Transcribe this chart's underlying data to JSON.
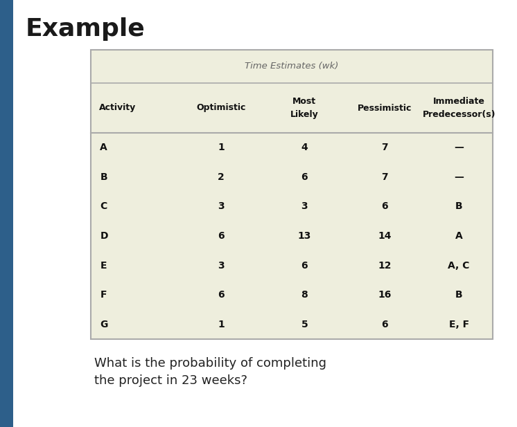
{
  "title": "Example",
  "table_title": "Time Estimates (wk)",
  "col_headers_line1": [
    "Activity",
    "Optimistic",
    "Most",
    "Pessimistic",
    "Immediate"
  ],
  "col_headers_line2": [
    "",
    "",
    "Likely",
    "",
    "Predecessor(s)"
  ],
  "rows": [
    [
      "A",
      "1",
      "4",
      "7",
      "—"
    ],
    [
      "B",
      "2",
      "6",
      "7",
      "—"
    ],
    [
      "C",
      "3",
      "3",
      "6",
      "B"
    ],
    [
      "D",
      "6",
      "13",
      "14",
      "A"
    ],
    [
      "E",
      "3",
      "6",
      "12",
      "A, C"
    ],
    [
      "F",
      "6",
      "8",
      "16",
      "B"
    ],
    [
      "G",
      "1",
      "5",
      "6",
      "E, F"
    ]
  ],
  "question": "What is the probability of completing\nthe project in 23 weeks?",
  "table_bg": "#eeeedd",
  "border_color": "#aaaaaa",
  "title_color": "#1a1a1a",
  "header_text_color": "#111111",
  "data_text_color": "#111111",
  "slide_bg": "#ffffff",
  "left_bar_color": "#2d5f8a",
  "question_color": "#222222",
  "table_title_color": "#666666"
}
